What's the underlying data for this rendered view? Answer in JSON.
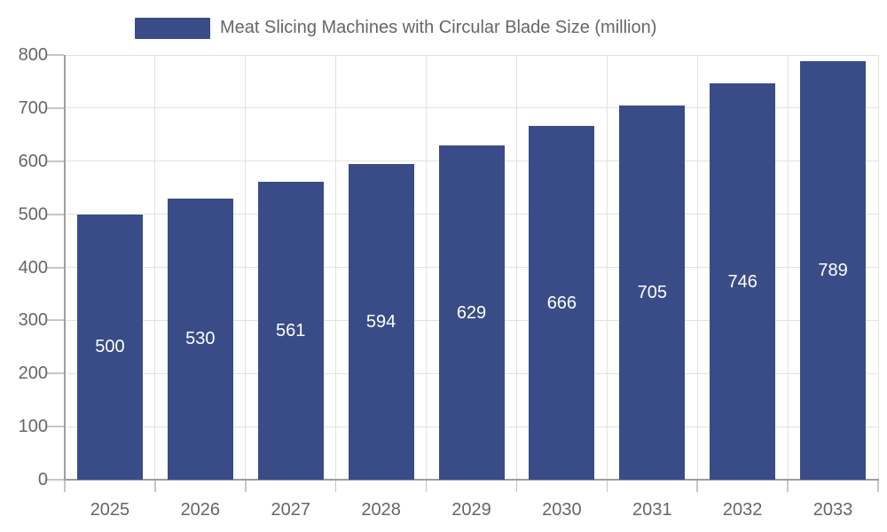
{
  "chart_data": {
    "type": "bar",
    "title": "Meat Slicing Machines with Circular Blade Size (million)",
    "categories": [
      "2025",
      "2026",
      "2027",
      "2028",
      "2029",
      "2030",
      "2031",
      "2032",
      "2033"
    ],
    "values": [
      500,
      530,
      561,
      594,
      629,
      666,
      705,
      746,
      789
    ],
    "xlabel": "",
    "ylabel": "",
    "ylim": [
      0,
      800
    ],
    "yticks": [
      0,
      100,
      200,
      300,
      400,
      500,
      600,
      700,
      800
    ],
    "grid": true,
    "legend_position": "top-center",
    "bar_label_position": "inside-center",
    "colors": {
      "bar": "#3a4c88",
      "bar_label": "#ffffff",
      "grid": "#e2e2e2",
      "axis_line": "#9e9e9e",
      "tick": "#c6c6c6",
      "axis_label": "#666666",
      "legend_text": "#666666",
      "background": "#ffffff"
    }
  }
}
